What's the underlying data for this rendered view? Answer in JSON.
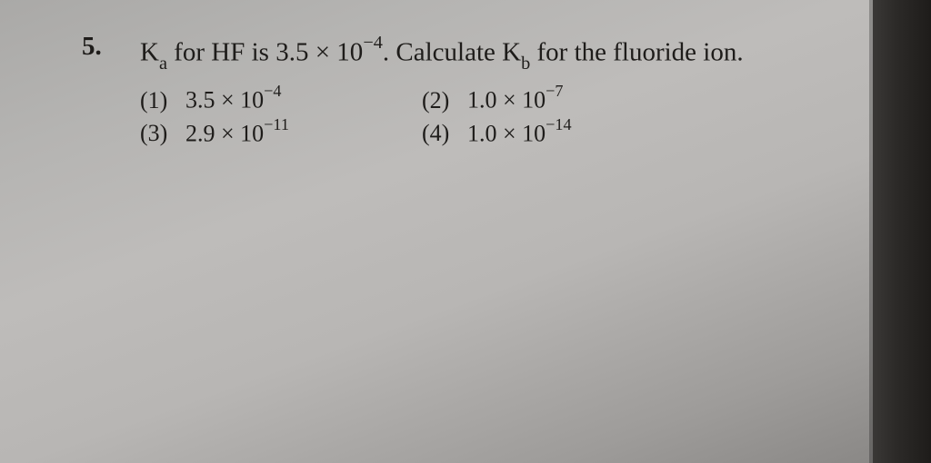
{
  "question": {
    "number": "5.",
    "stem_parts": {
      "p1": "K",
      "sub1": "a",
      "p2": " for HF is 3.5 × 10",
      "sup1": "−4",
      "p3": ". Calculate K",
      "sub2": "b",
      "p4": " for the fluoride ion."
    },
    "options": [
      {
        "label": "(1)",
        "mantissa": "3.5 × 10",
        "exp": "−4"
      },
      {
        "label": "(2)",
        "mantissa": "1.0 × 10",
        "exp": "−7"
      },
      {
        "label": "(3)",
        "mantissa": "2.9 × 10",
        "exp": "−11"
      },
      {
        "label": "(4)",
        "mantissa": "1.0 × 10",
        "exp": "−14"
      }
    ]
  },
  "style": {
    "page_bg": "#b5b4b2",
    "text_color": "#1e1c1a",
    "qnum_fontsize": 29,
    "stem_fontsize": 29,
    "option_fontsize": 26,
    "font_family": "Times New Roman"
  }
}
